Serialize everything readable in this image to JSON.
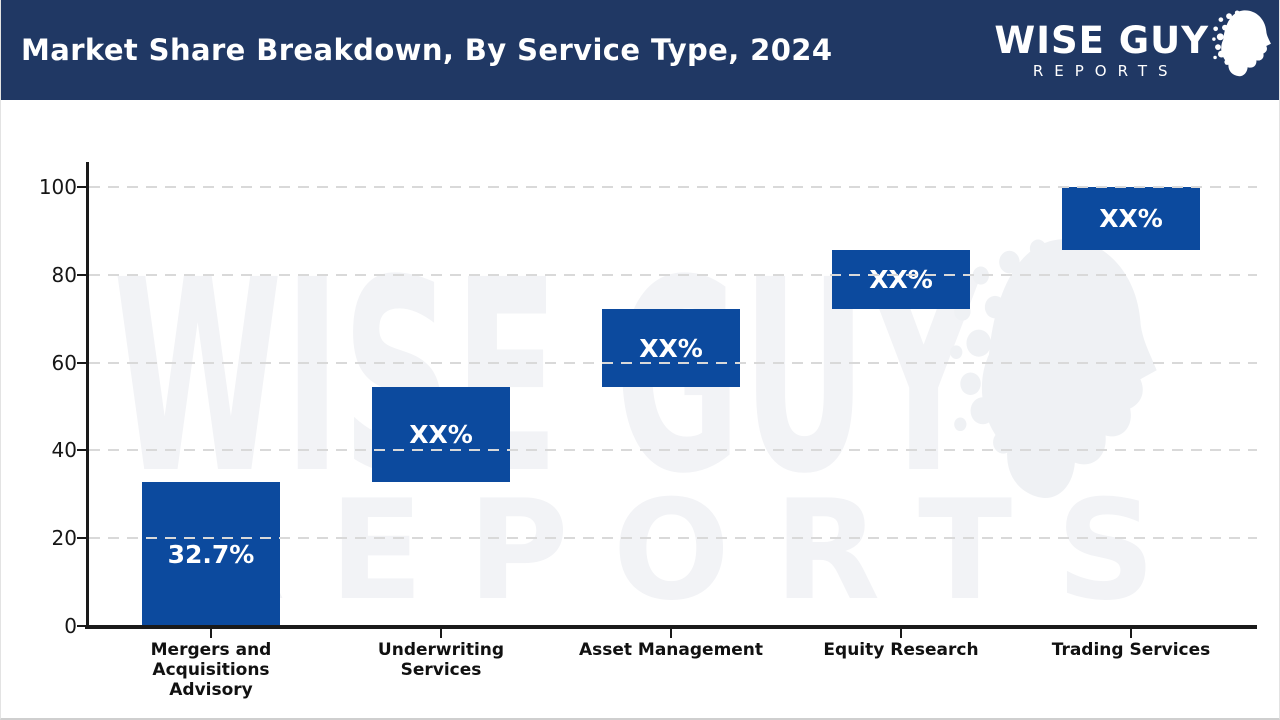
{
  "header": {
    "title": "Market Share Breakdown, By Service Type, 2024",
    "bg": "#203864",
    "text_color": "#ffffff",
    "logo": {
      "line1": "WISE GUY",
      "line2": "REPORTS"
    }
  },
  "watermark": {
    "line1": "WISE GUY",
    "line2": "REPORTS",
    "text_color": "#f2f3f6",
    "head_color": "#eff1f4"
  },
  "chart_data": {
    "type": "bar",
    "variant": "waterfall",
    "title": "Market Share Breakdown, By Service Type, 2024",
    "unit": "%",
    "categories": [
      "Mergers and Acquisitions Advisory",
      "Underwriting Services",
      "Asset Management",
      "Equity Research",
      "Trading Services"
    ],
    "category_lines": [
      [
        "Mergers and",
        "Acquisitions",
        "Advisory"
      ],
      [
        "Underwriting",
        "Services"
      ],
      [
        "Asset Management"
      ],
      [
        "Equity Research"
      ],
      [
        "Trading Services"
      ]
    ],
    "segments": [
      {
        "label": "32.7%",
        "start": 0,
        "end": 32.7,
        "value": 32.7,
        "masked": false
      },
      {
        "label": "XX%",
        "start": 32.7,
        "end": 54.4,
        "value": 21.7,
        "masked": true
      },
      {
        "label": "XX%",
        "start": 54.4,
        "end": 72.2,
        "value": 17.8,
        "masked": true
      },
      {
        "label": "XX%",
        "start": 72.2,
        "end": 85.6,
        "value": 13.4,
        "masked": true
      },
      {
        "label": "XX%",
        "start": 85.6,
        "end": 100,
        "value": 14.4,
        "masked": true
      }
    ],
    "ylim": [
      0,
      100
    ],
    "yticks": [
      0,
      20,
      40,
      60,
      80,
      100
    ],
    "grid": {
      "horizontal": true,
      "style": "dashed"
    },
    "legend": null,
    "colors": {
      "bar": "#0c4a9e",
      "bar_label": "#ffffff",
      "axis": "#1a1a1a",
      "grid": "#d9d9d9",
      "tick_label": "#161616"
    }
  }
}
